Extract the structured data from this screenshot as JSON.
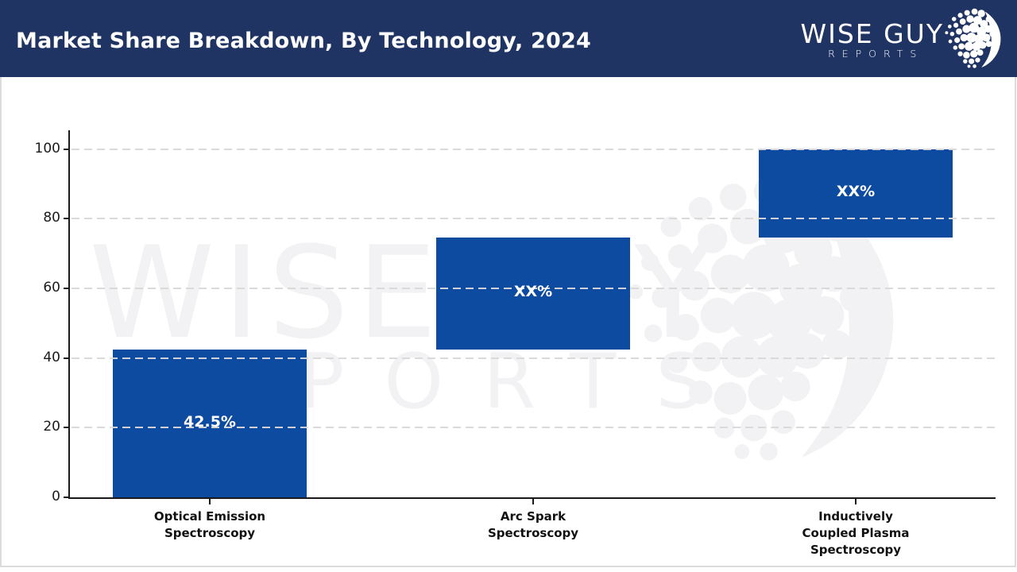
{
  "header": {
    "title": "Market Share Breakdown, By Technology, 2024",
    "logo": {
      "name": "WISE GUY",
      "sub": "REPORTS"
    }
  },
  "watermark": {
    "word1": "WISE G",
    "word2": "Y",
    "word3": "REPORTS"
  },
  "colors": {
    "header_bg": "#1f3463",
    "bar": "#0d4ba1",
    "bar_label": "#ffffff",
    "axis": "#1a1a1a",
    "grid": "#d9d9d9",
    "watermark": "#f2f2f4",
    "canvas_border": "#dcdcdc",
    "title_text": "#ffffff"
  },
  "chart_data": {
    "type": "bar",
    "subtype": "floating-waterfall",
    "title": "Market Share Breakdown, By Technology, 2024",
    "categories": [
      [
        "Optical Emission",
        "Spectroscopy"
      ],
      [
        "Arc Spark",
        "Spectroscopy"
      ],
      [
        "Inductively",
        "Coupled Plasma",
        "Spectroscopy"
      ]
    ],
    "bars": [
      {
        "category": "Optical Emission Spectroscopy",
        "start": 0,
        "end": 42.5,
        "label": "42.5%"
      },
      {
        "category": "Arc Spark Spectroscopy",
        "start": 42.5,
        "end": 74.5,
        "label": "XX%"
      },
      {
        "category": "Inductively Coupled Plasma Spectroscopy",
        "start": 74.5,
        "end": 100,
        "label": "XX%"
      }
    ],
    "ylim": [
      0,
      100
    ],
    "yticks": [
      0,
      20,
      40,
      60,
      80,
      100
    ],
    "grid": "horizontal-dashed",
    "legend": "none",
    "bar_color": "#0d4ba1"
  }
}
